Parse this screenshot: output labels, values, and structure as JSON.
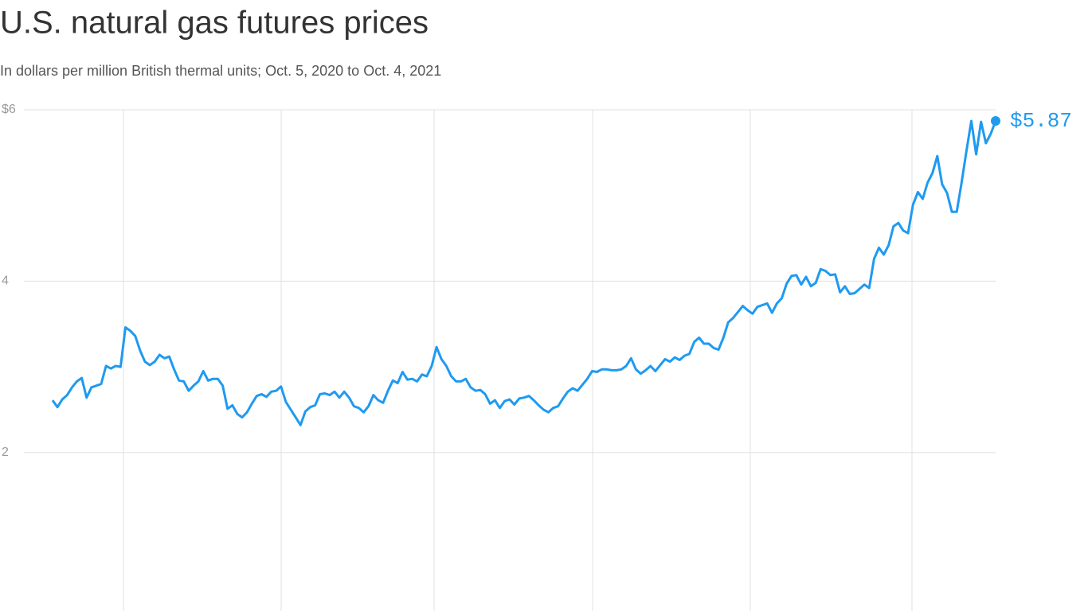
{
  "chart_data": {
    "type": "line",
    "title": "U.S. natural gas futures prices",
    "subtitle": "In dollars per million British thermal units; Oct. 5, 2020 to Oct. 4, 2021",
    "series": [
      {
        "color": "#1f9af0",
        "values": [
          2.61,
          2.53,
          2.62,
          2.67,
          2.76,
          2.83,
          2.87,
          2.64,
          2.76,
          2.78,
          2.8,
          3.01,
          2.98,
          3.01,
          3.0,
          3.46,
          3.42,
          3.36,
          3.19,
          3.06,
          3.02,
          3.06,
          3.14,
          3.1,
          3.12,
          2.97,
          2.84,
          2.83,
          2.72,
          2.78,
          2.83,
          2.95,
          2.84,
          2.86,
          2.86,
          2.78,
          2.51,
          2.55,
          2.45,
          2.41,
          2.47,
          2.57,
          2.66,
          2.68,
          2.65,
          2.71,
          2.72,
          2.77,
          2.59,
          2.5,
          2.41,
          2.32,
          2.48,
          2.53,
          2.55,
          2.68,
          2.69,
          2.67,
          2.71,
          2.64,
          2.71,
          2.64,
          2.54,
          2.52,
          2.47,
          2.54,
          2.67,
          2.61,
          2.58,
          2.72,
          2.84,
          2.81,
          2.94,
          2.85,
          2.86,
          2.83,
          2.91,
          2.89,
          3.01,
          3.23,
          3.09,
          3.01,
          2.89,
          2.83,
          2.83,
          2.86,
          2.76,
          2.72,
          2.73,
          2.68,
          2.57,
          2.61,
          2.52,
          2.6,
          2.62,
          2.56,
          2.63,
          2.64,
          2.66,
          2.61,
          2.55,
          2.5,
          2.47,
          2.52,
          2.54,
          2.63,
          2.71,
          2.75,
          2.72,
          2.79,
          2.86,
          2.95,
          2.94,
          2.97,
          2.97,
          2.96,
          2.96,
          2.97,
          3.01,
          3.1,
          2.97,
          2.92,
          2.96,
          3.01,
          2.95,
          3.02,
          3.09,
          3.06,
          3.11,
          3.08,
          3.13,
          3.15,
          3.29,
          3.34,
          3.27,
          3.27,
          3.22,
          3.2,
          3.34,
          3.52,
          3.57,
          3.64,
          3.71,
          3.66,
          3.62,
          3.7,
          3.72,
          3.74,
          3.63,
          3.74,
          3.8,
          3.97,
          4.06,
          4.07,
          3.96,
          4.05,
          3.94,
          3.98,
          4.14,
          4.12,
          4.07,
          4.08,
          3.87,
          3.94,
          3.85,
          3.86,
          3.91,
          3.96,
          3.92,
          4.26,
          4.39,
          4.31,
          4.42,
          4.64,
          4.68,
          4.59,
          4.56,
          4.89,
          5.04,
          4.96,
          5.15,
          5.26,
          5.46,
          5.13,
          5.03,
          4.81,
          4.81,
          5.15,
          5.52,
          5.87,
          5.48,
          5.86,
          5.61,
          5.72,
          5.87
        ]
      }
    ],
    "last_value_label": "$5.87",
    "ylim": [
      0.15,
      6
    ],
    "yticks": [
      {
        "value": 6,
        "label": "$6"
      },
      4,
      2
    ],
    "grid": true
  }
}
